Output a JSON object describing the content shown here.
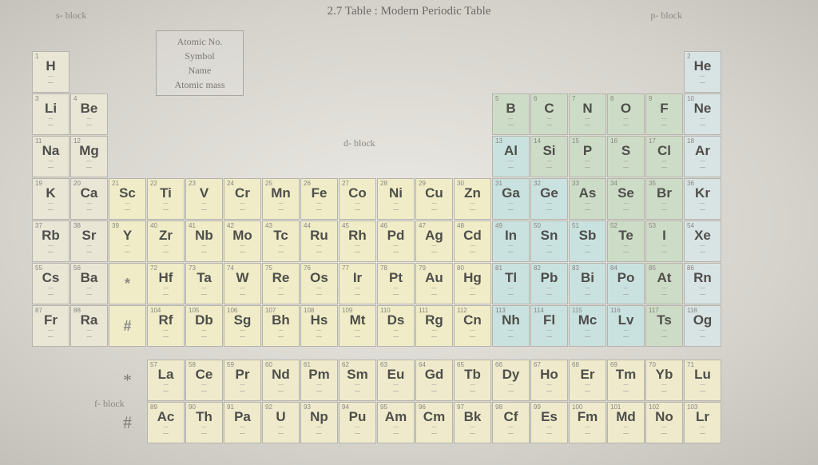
{
  "title": "2.7  Table : Modern Periodic Table",
  "labels": {
    "s_block": "s- block",
    "p_block": "p- block",
    "d_block": "d- block",
    "f_block": "f- block"
  },
  "legend": {
    "l1": "Atomic No.",
    "l2": "Symbol",
    "l3": "Name",
    "l4": "Atomic mass"
  },
  "block_colors": {
    "s": "#e9e6d6",
    "d": "#efecc7",
    "p_metal": "#c9e2e0",
    "p_nonmetal": "#cddcc6",
    "noble": "#d8e3e4",
    "f": "#eeeacb",
    "metalloid_border": "#7fb3ad"
  },
  "elements": [
    {
      "n": 1,
      "s": "H",
      "r": 1,
      "c": 1,
      "b": "s"
    },
    {
      "n": 2,
      "s": "He",
      "r": 1,
      "c": 18,
      "b": "noble"
    },
    {
      "n": 3,
      "s": "Li",
      "r": 2,
      "c": 1,
      "b": "s"
    },
    {
      "n": 4,
      "s": "Be",
      "r": 2,
      "c": 2,
      "b": "s"
    },
    {
      "n": 5,
      "s": "B",
      "r": 2,
      "c": 13,
      "b": "p_nonmetal"
    },
    {
      "n": 6,
      "s": "C",
      "r": 2,
      "c": 14,
      "b": "p_nonmetal"
    },
    {
      "n": 7,
      "s": "N",
      "r": 2,
      "c": 15,
      "b": "p_nonmetal"
    },
    {
      "n": 8,
      "s": "O",
      "r": 2,
      "c": 16,
      "b": "p_nonmetal"
    },
    {
      "n": 9,
      "s": "F",
      "r": 2,
      "c": 17,
      "b": "p_nonmetal"
    },
    {
      "n": 10,
      "s": "Ne",
      "r": 2,
      "c": 18,
      "b": "noble"
    },
    {
      "n": 11,
      "s": "Na",
      "r": 3,
      "c": 1,
      "b": "s"
    },
    {
      "n": 12,
      "s": "Mg",
      "r": 3,
      "c": 2,
      "b": "s"
    },
    {
      "n": 13,
      "s": "Al",
      "r": 3,
      "c": 13,
      "b": "p_metal"
    },
    {
      "n": 14,
      "s": "Si",
      "r": 3,
      "c": 14,
      "b": "p_nonmetal"
    },
    {
      "n": 15,
      "s": "P",
      "r": 3,
      "c": 15,
      "b": "p_nonmetal"
    },
    {
      "n": 16,
      "s": "S",
      "r": 3,
      "c": 16,
      "b": "p_nonmetal"
    },
    {
      "n": 17,
      "s": "Cl",
      "r": 3,
      "c": 17,
      "b": "p_nonmetal"
    },
    {
      "n": 18,
      "s": "Ar",
      "r": 3,
      "c": 18,
      "b": "noble"
    },
    {
      "n": 19,
      "s": "K",
      "r": 4,
      "c": 1,
      "b": "s"
    },
    {
      "n": 20,
      "s": "Ca",
      "r": 4,
      "c": 2,
      "b": "s"
    },
    {
      "n": 21,
      "s": "Sc",
      "r": 4,
      "c": 3,
      "b": "d"
    },
    {
      "n": 22,
      "s": "Ti",
      "r": 4,
      "c": 4,
      "b": "d"
    },
    {
      "n": 23,
      "s": "V",
      "r": 4,
      "c": 5,
      "b": "d"
    },
    {
      "n": 24,
      "s": "Cr",
      "r": 4,
      "c": 6,
      "b": "d"
    },
    {
      "n": 25,
      "s": "Mn",
      "r": 4,
      "c": 7,
      "b": "d"
    },
    {
      "n": 26,
      "s": "Fe",
      "r": 4,
      "c": 8,
      "b": "d"
    },
    {
      "n": 27,
      "s": "Co",
      "r": 4,
      "c": 9,
      "b": "d"
    },
    {
      "n": 28,
      "s": "Ni",
      "r": 4,
      "c": 10,
      "b": "d"
    },
    {
      "n": 29,
      "s": "Cu",
      "r": 4,
      "c": 11,
      "b": "d"
    },
    {
      "n": 30,
      "s": "Zn",
      "r": 4,
      "c": 12,
      "b": "d"
    },
    {
      "n": 31,
      "s": "Ga",
      "r": 4,
      "c": 13,
      "b": "p_metal"
    },
    {
      "n": 32,
      "s": "Ge",
      "r": 4,
      "c": 14,
      "b": "p_metal"
    },
    {
      "n": 33,
      "s": "As",
      "r": 4,
      "c": 15,
      "b": "p_nonmetal"
    },
    {
      "n": 34,
      "s": "Se",
      "r": 4,
      "c": 16,
      "b": "p_nonmetal"
    },
    {
      "n": 35,
      "s": "Br",
      "r": 4,
      "c": 17,
      "b": "p_nonmetal"
    },
    {
      "n": 36,
      "s": "Kr",
      "r": 4,
      "c": 18,
      "b": "noble"
    },
    {
      "n": 37,
      "s": "Rb",
      "r": 5,
      "c": 1,
      "b": "s"
    },
    {
      "n": 38,
      "s": "Sr",
      "r": 5,
      "c": 2,
      "b": "s"
    },
    {
      "n": 39,
      "s": "Y",
      "r": 5,
      "c": 3,
      "b": "d"
    },
    {
      "n": 40,
      "s": "Zr",
      "r": 5,
      "c": 4,
      "b": "d"
    },
    {
      "n": 41,
      "s": "Nb",
      "r": 5,
      "c": 5,
      "b": "d"
    },
    {
      "n": 42,
      "s": "Mo",
      "r": 5,
      "c": 6,
      "b": "d"
    },
    {
      "n": 43,
      "s": "Tc",
      "r": 5,
      "c": 7,
      "b": "d"
    },
    {
      "n": 44,
      "s": "Ru",
      "r": 5,
      "c": 8,
      "b": "d"
    },
    {
      "n": 45,
      "s": "Rh",
      "r": 5,
      "c": 9,
      "b": "d"
    },
    {
      "n": 46,
      "s": "Pd",
      "r": 5,
      "c": 10,
      "b": "d"
    },
    {
      "n": 47,
      "s": "Ag",
      "r": 5,
      "c": 11,
      "b": "d"
    },
    {
      "n": 48,
      "s": "Cd",
      "r": 5,
      "c": 12,
      "b": "d"
    },
    {
      "n": 49,
      "s": "In",
      "r": 5,
      "c": 13,
      "b": "p_metal"
    },
    {
      "n": 50,
      "s": "Sn",
      "r": 5,
      "c": 14,
      "b": "p_metal"
    },
    {
      "n": 51,
      "s": "Sb",
      "r": 5,
      "c": 15,
      "b": "p_metal"
    },
    {
      "n": 52,
      "s": "Te",
      "r": 5,
      "c": 16,
      "b": "p_nonmetal"
    },
    {
      "n": 53,
      "s": "I",
      "r": 5,
      "c": 17,
      "b": "p_nonmetal"
    },
    {
      "n": 54,
      "s": "Xe",
      "r": 5,
      "c": 18,
      "b": "noble"
    },
    {
      "n": 55,
      "s": "Cs",
      "r": 6,
      "c": 1,
      "b": "s"
    },
    {
      "n": 56,
      "s": "Ba",
      "r": 6,
      "c": 2,
      "b": "s"
    },
    {
      "n": "",
      "s": "*",
      "r": 6,
      "c": 3,
      "b": "d",
      "ph": true
    },
    {
      "n": 72,
      "s": "Hf",
      "r": 6,
      "c": 4,
      "b": "d"
    },
    {
      "n": 73,
      "s": "Ta",
      "r": 6,
      "c": 5,
      "b": "d"
    },
    {
      "n": 74,
      "s": "W",
      "r": 6,
      "c": 6,
      "b": "d"
    },
    {
      "n": 75,
      "s": "Re",
      "r": 6,
      "c": 7,
      "b": "d"
    },
    {
      "n": 76,
      "s": "Os",
      "r": 6,
      "c": 8,
      "b": "d"
    },
    {
      "n": 77,
      "s": "Ir",
      "r": 6,
      "c": 9,
      "b": "d"
    },
    {
      "n": 78,
      "s": "Pt",
      "r": 6,
      "c": 10,
      "b": "d"
    },
    {
      "n": 79,
      "s": "Au",
      "r": 6,
      "c": 11,
      "b": "d"
    },
    {
      "n": 80,
      "s": "Hg",
      "r": 6,
      "c": 12,
      "b": "d"
    },
    {
      "n": 81,
      "s": "Tl",
      "r": 6,
      "c": 13,
      "b": "p_metal"
    },
    {
      "n": 82,
      "s": "Pb",
      "r": 6,
      "c": 14,
      "b": "p_metal"
    },
    {
      "n": 83,
      "s": "Bi",
      "r": 6,
      "c": 15,
      "b": "p_metal"
    },
    {
      "n": 84,
      "s": "Po",
      "r": 6,
      "c": 16,
      "b": "p_metal"
    },
    {
      "n": 85,
      "s": "At",
      "r": 6,
      "c": 17,
      "b": "p_nonmetal"
    },
    {
      "n": 86,
      "s": "Rn",
      "r": 6,
      "c": 18,
      "b": "noble"
    },
    {
      "n": 87,
      "s": "Fr",
      "r": 7,
      "c": 1,
      "b": "s"
    },
    {
      "n": 88,
      "s": "Ra",
      "r": 7,
      "c": 2,
      "b": "s"
    },
    {
      "n": "",
      "s": "#",
      "r": 7,
      "c": 3,
      "b": "d",
      "ph": true
    },
    {
      "n": 104,
      "s": "Rf",
      "r": 7,
      "c": 4,
      "b": "d"
    },
    {
      "n": 105,
      "s": "Db",
      "r": 7,
      "c": 5,
      "b": "d"
    },
    {
      "n": 106,
      "s": "Sg",
      "r": 7,
      "c": 6,
      "b": "d"
    },
    {
      "n": 107,
      "s": "Bh",
      "r": 7,
      "c": 7,
      "b": "d"
    },
    {
      "n": 108,
      "s": "Hs",
      "r": 7,
      "c": 8,
      "b": "d"
    },
    {
      "n": 109,
      "s": "Mt",
      "r": 7,
      "c": 9,
      "b": "d"
    },
    {
      "n": 110,
      "s": "Ds",
      "r": 7,
      "c": 10,
      "b": "d"
    },
    {
      "n": 111,
      "s": "Rg",
      "r": 7,
      "c": 11,
      "b": "d"
    },
    {
      "n": 112,
      "s": "Cn",
      "r": 7,
      "c": 12,
      "b": "d"
    },
    {
      "n": 113,
      "s": "Nh",
      "r": 7,
      "c": 13,
      "b": "p_metal"
    },
    {
      "n": 114,
      "s": "Fl",
      "r": 7,
      "c": 14,
      "b": "p_metal"
    },
    {
      "n": 115,
      "s": "Mc",
      "r": 7,
      "c": 15,
      "b": "p_metal"
    },
    {
      "n": 116,
      "s": "Lv",
      "r": 7,
      "c": 16,
      "b": "p_metal"
    },
    {
      "n": 117,
      "s": "Ts",
      "r": 7,
      "c": 17,
      "b": "p_nonmetal"
    },
    {
      "n": 118,
      "s": "Og",
      "r": 7,
      "c": 18,
      "b": "noble"
    }
  ],
  "f_rows": [
    {
      "mark": "*",
      "row": 1,
      "items": [
        {
          "n": 57,
          "s": "La"
        },
        {
          "n": 58,
          "s": "Ce"
        },
        {
          "n": 59,
          "s": "Pr"
        },
        {
          "n": 60,
          "s": "Nd"
        },
        {
          "n": 61,
          "s": "Pm"
        },
        {
          "n": 62,
          "s": "Sm"
        },
        {
          "n": 63,
          "s": "Eu"
        },
        {
          "n": 64,
          "s": "Gd"
        },
        {
          "n": 65,
          "s": "Tb"
        },
        {
          "n": 66,
          "s": "Dy"
        },
        {
          "n": 67,
          "s": "Ho"
        },
        {
          "n": 68,
          "s": "Er"
        },
        {
          "n": 69,
          "s": "Tm"
        },
        {
          "n": 70,
          "s": "Yb"
        },
        {
          "n": 71,
          "s": "Lu"
        }
      ]
    },
    {
      "mark": "#",
      "row": 2,
      "items": [
        {
          "n": 89,
          "s": "Ac"
        },
        {
          "n": 90,
          "s": "Th"
        },
        {
          "n": 91,
          "s": "Pa"
        },
        {
          "n": 92,
          "s": "U"
        },
        {
          "n": 93,
          "s": "Np"
        },
        {
          "n": 94,
          "s": "Pu"
        },
        {
          "n": 95,
          "s": "Am"
        },
        {
          "n": 96,
          "s": "Cm"
        },
        {
          "n": 97,
          "s": "Bk"
        },
        {
          "n": 98,
          "s": "Cf"
        },
        {
          "n": 99,
          "s": "Es"
        },
        {
          "n": 100,
          "s": "Fm"
        },
        {
          "n": 101,
          "s": "Md"
        },
        {
          "n": 102,
          "s": "No"
        },
        {
          "n": 103,
          "s": "Lr"
        }
      ]
    }
  ]
}
